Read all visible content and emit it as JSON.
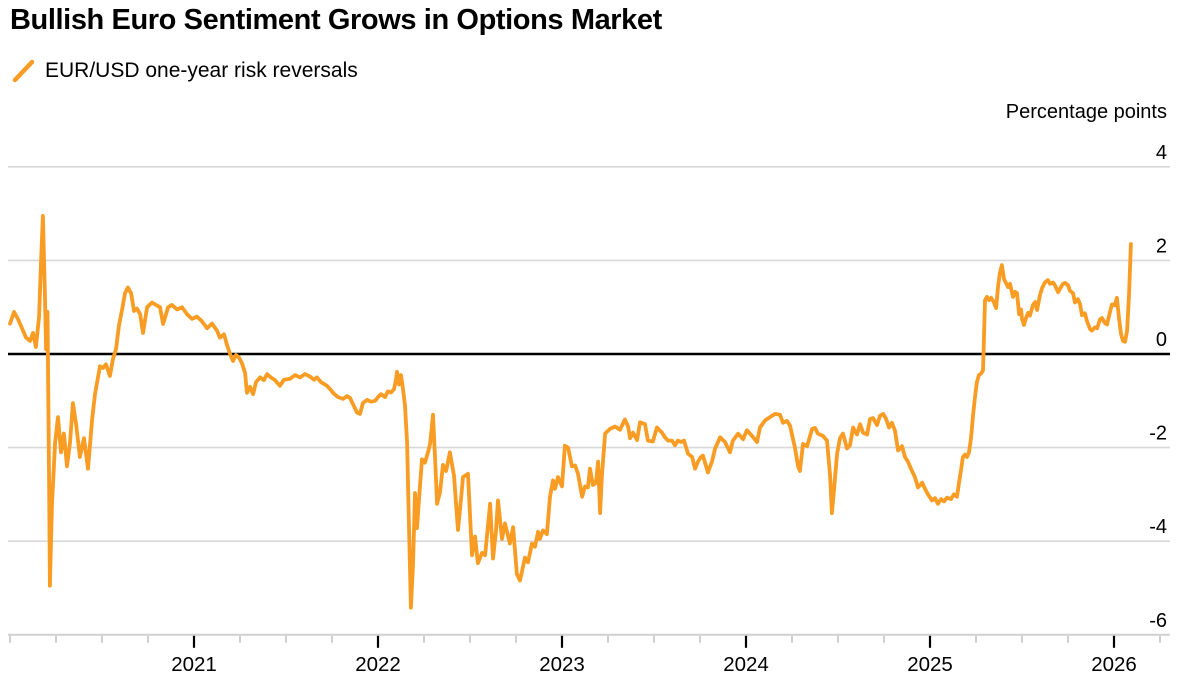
{
  "header": {
    "title": "Bullish Euro Sentiment Grows in Options Market",
    "legend_label": "EUR/USD one-year risk reversals"
  },
  "axis": {
    "unit_label": "Percentage points"
  },
  "colors": {
    "line": "#F89C24",
    "grid": "#D8D8D8",
    "zero_line": "#000000",
    "axis_line": "#D2D2D2",
    "minor_tick": "#C4C4C4",
    "major_tick": "#000000",
    "label": "#000000"
  },
  "chart_data": {
    "type": "line",
    "title": "Bullish Euro Sentiment Grows in Options Market",
    "series_name": "EUR/USD one-year risk reversals",
    "ylabel": "Percentage points",
    "xlabel": "",
    "grid": "horizontal",
    "legend_position": "top-left",
    "x_range": [
      2019.99,
      2026.3
    ],
    "ylim": [
      -6.6,
      4
    ],
    "y_ticks": [
      4,
      2,
      0,
      -2,
      -4,
      -6
    ],
    "x_ticks": [
      2021,
      2022,
      2023,
      2024,
      2025,
      2026
    ],
    "x_minor_tick_interval": 0.25,
    "zero_line": true,
    "points": [
      [
        2020.0,
        0.65
      ],
      [
        2020.022,
        0.9
      ],
      [
        2020.043,
        0.75
      ],
      [
        2020.065,
        0.55
      ],
      [
        2020.087,
        0.35
      ],
      [
        2020.109,
        0.28
      ],
      [
        2020.125,
        0.45
      ],
      [
        2020.141,
        0.15
      ],
      [
        2020.158,
        0.8
      ],
      [
        2020.168,
        1.9
      ],
      [
        2020.179,
        2.95
      ],
      [
        2020.19,
        1.2
      ],
      [
        2020.196,
        0.1
      ],
      [
        2020.204,
        0.9
      ],
      [
        2020.212,
        -2.5
      ],
      [
        2020.217,
        -4.95
      ],
      [
        2020.228,
        -3.2
      ],
      [
        2020.245,
        -1.9
      ],
      [
        2020.261,
        -1.35
      ],
      [
        2020.277,
        -2.1
      ],
      [
        2020.293,
        -1.7
      ],
      [
        2020.31,
        -2.4
      ],
      [
        2020.326,
        -1.9
      ],
      [
        2020.342,
        -1.05
      ],
      [
        2020.359,
        -1.5
      ],
      [
        2020.38,
        -2.2
      ],
      [
        2020.402,
        -1.8
      ],
      [
        2020.424,
        -2.45
      ],
      [
        2020.446,
        -1.4
      ],
      [
        2020.462,
        -0.86
      ],
      [
        2020.478,
        -0.5
      ],
      [
        2020.489,
        -0.26
      ],
      [
        2020.505,
        -0.3
      ],
      [
        2020.522,
        -0.22
      ],
      [
        2020.543,
        -0.47
      ],
      [
        2020.56,
        -0.1
      ],
      [
        2020.576,
        0.1
      ],
      [
        2020.592,
        0.6
      ],
      [
        2020.609,
        0.95
      ],
      [
        2020.625,
        1.3
      ],
      [
        2020.641,
        1.42
      ],
      [
        2020.658,
        1.3
      ],
      [
        2020.674,
        0.92
      ],
      [
        2020.69,
        0.97
      ],
      [
        2020.707,
        0.85
      ],
      [
        2020.723,
        0.45
      ],
      [
        2020.745,
        1.0
      ],
      [
        2020.772,
        1.1
      ],
      [
        2020.793,
        1.05
      ],
      [
        2020.815,
        1.0
      ],
      [
        2020.832,
        0.64
      ],
      [
        2020.859,
        1.0
      ],
      [
        2020.88,
        1.05
      ],
      [
        2020.908,
        0.95
      ],
      [
        2020.935,
        1.0
      ],
      [
        2020.962,
        0.85
      ],
      [
        2020.989,
        0.75
      ],
      [
        2021.016,
        0.8
      ],
      [
        2021.043,
        0.7
      ],
      [
        2021.071,
        0.55
      ],
      [
        2021.098,
        0.65
      ],
      [
        2021.125,
        0.5
      ],
      [
        2021.141,
        0.35
      ],
      [
        2021.163,
        0.42
      ],
      [
        2021.179,
        0.2
      ],
      [
        2021.196,
        0.0
      ],
      [
        2021.212,
        -0.15
      ],
      [
        2021.228,
        -0.02
      ],
      [
        2021.245,
        -0.08
      ],
      [
        2021.261,
        -0.2
      ],
      [
        2021.277,
        -0.4
      ],
      [
        2021.288,
        -0.83
      ],
      [
        2021.304,
        -0.7
      ],
      [
        2021.321,
        -0.86
      ],
      [
        2021.337,
        -0.6
      ],
      [
        2021.359,
        -0.5
      ],
      [
        2021.38,
        -0.56
      ],
      [
        2021.397,
        -0.43
      ],
      [
        2021.418,
        -0.5
      ],
      [
        2021.44,
        -0.56
      ],
      [
        2021.467,
        -0.68
      ],
      [
        2021.489,
        -0.55
      ],
      [
        2021.522,
        -0.53
      ],
      [
        2021.549,
        -0.45
      ],
      [
        2021.576,
        -0.5
      ],
      [
        2021.603,
        -0.43
      ],
      [
        2021.63,
        -0.48
      ],
      [
        2021.652,
        -0.55
      ],
      [
        2021.668,
        -0.5
      ],
      [
        2021.69,
        -0.6
      ],
      [
        2021.723,
        -0.68
      ],
      [
        2021.739,
        -0.75
      ],
      [
        2021.761,
        -0.85
      ],
      [
        2021.783,
        -0.92
      ],
      [
        2021.81,
        -0.96
      ],
      [
        2021.832,
        -0.9
      ],
      [
        2021.848,
        -0.94
      ],
      [
        2021.87,
        -1.12
      ],
      [
        2021.886,
        -1.25
      ],
      [
        2021.902,
        -1.28
      ],
      [
        2021.918,
        -1.05
      ],
      [
        2021.94,
        -0.98
      ],
      [
        2021.962,
        -1.02
      ],
      [
        2021.984,
        -1.0
      ],
      [
        2022.0,
        -0.92
      ],
      [
        2022.016,
        -0.86
      ],
      [
        2022.038,
        -0.92
      ],
      [
        2022.054,
        -0.8
      ],
      [
        2022.071,
        -0.82
      ],
      [
        2022.087,
        -0.75
      ],
      [
        2022.098,
        -0.55
      ],
      [
        2022.103,
        -0.38
      ],
      [
        2022.114,
        -0.65
      ],
      [
        2022.125,
        -0.45
      ],
      [
        2022.136,
        -0.75
      ],
      [
        2022.147,
        -1.1
      ],
      [
        2022.158,
        -1.9
      ],
      [
        2022.168,
        -3.6
      ],
      [
        2022.179,
        -5.42
      ],
      [
        2022.19,
        -4.5
      ],
      [
        2022.201,
        -2.97
      ],
      [
        2022.212,
        -3.72
      ],
      [
        2022.223,
        -3.1
      ],
      [
        2022.239,
        -2.25
      ],
      [
        2022.255,
        -2.32
      ],
      [
        2022.272,
        -2.1
      ],
      [
        2022.283,
        -1.92
      ],
      [
        2022.299,
        -1.3
      ],
      [
        2022.31,
        -2.2
      ],
      [
        2022.321,
        -3.2
      ],
      [
        2022.337,
        -2.95
      ],
      [
        2022.353,
        -2.37
      ],
      [
        2022.37,
        -2.5
      ],
      [
        2022.391,
        -2.1
      ],
      [
        2022.413,
        -2.6
      ],
      [
        2022.435,
        -3.76
      ],
      [
        2022.451,
        -3.1
      ],
      [
        2022.462,
        -2.63
      ],
      [
        2022.489,
        -2.56
      ],
      [
        2022.511,
        -4.3
      ],
      [
        2022.527,
        -3.9
      ],
      [
        2022.543,
        -4.47
      ],
      [
        2022.565,
        -4.25
      ],
      [
        2022.582,
        -4.3
      ],
      [
        2022.609,
        -3.2
      ],
      [
        2022.625,
        -4.37
      ],
      [
        2022.641,
        -3.8
      ],
      [
        2022.652,
        -3.13
      ],
      [
        2022.674,
        -3.95
      ],
      [
        2022.69,
        -3.62
      ],
      [
        2022.717,
        -4.05
      ],
      [
        2022.734,
        -3.7
      ],
      [
        2022.755,
        -4.7
      ],
      [
        2022.772,
        -4.84
      ],
      [
        2022.799,
        -4.35
      ],
      [
        2022.815,
        -4.45
      ],
      [
        2022.837,
        -4.05
      ],
      [
        2022.853,
        -4.12
      ],
      [
        2022.87,
        -3.8
      ],
      [
        2022.88,
        -3.95
      ],
      [
        2022.897,
        -3.77
      ],
      [
        2022.918,
        -3.85
      ],
      [
        2022.935,
        -3.05
      ],
      [
        2022.951,
        -2.7
      ],
      [
        2022.962,
        -2.88
      ],
      [
        2022.978,
        -2.63
      ],
      [
        2023.0,
        -2.83
      ],
      [
        2023.016,
        -1.96
      ],
      [
        2023.033,
        -2.0
      ],
      [
        2023.054,
        -2.4
      ],
      [
        2023.071,
        -2.38
      ],
      [
        2023.087,
        -2.56
      ],
      [
        2023.109,
        -3.05
      ],
      [
        2023.125,
        -2.83
      ],
      [
        2023.141,
        -2.85
      ],
      [
        2023.152,
        -2.45
      ],
      [
        2023.168,
        -2.8
      ],
      [
        2023.185,
        -2.75
      ],
      [
        2023.196,
        -2.3
      ],
      [
        2023.207,
        -3.4
      ],
      [
        2023.217,
        -2.6
      ],
      [
        2023.234,
        -1.7
      ],
      [
        2023.261,
        -1.6
      ],
      [
        2023.288,
        -1.55
      ],
      [
        2023.315,
        -1.62
      ],
      [
        2023.342,
        -1.4
      ],
      [
        2023.359,
        -1.55
      ],
      [
        2023.37,
        -1.8
      ],
      [
        2023.386,
        -1.68
      ],
      [
        2023.408,
        -1.84
      ],
      [
        2023.424,
        -1.46
      ],
      [
        2023.451,
        -1.5
      ],
      [
        2023.467,
        -1.85
      ],
      [
        2023.494,
        -1.87
      ],
      [
        2023.516,
        -1.57
      ],
      [
        2023.543,
        -1.68
      ],
      [
        2023.56,
        -1.78
      ],
      [
        2023.576,
        -1.85
      ],
      [
        2023.598,
        -1.85
      ],
      [
        2023.614,
        -1.95
      ],
      [
        2023.63,
        -1.85
      ],
      [
        2023.647,
        -1.88
      ],
      [
        2023.663,
        -1.85
      ],
      [
        2023.685,
        -2.13
      ],
      [
        2023.707,
        -2.2
      ],
      [
        2023.723,
        -2.45
      ],
      [
        2023.739,
        -2.3
      ],
      [
        2023.755,
        -2.2
      ],
      [
        2023.766,
        -2.17
      ],
      [
        2023.793,
        -2.53
      ],
      [
        2023.815,
        -2.3
      ],
      [
        2023.832,
        -2.02
      ],
      [
        2023.859,
        -1.78
      ],
      [
        2023.886,
        -1.88
      ],
      [
        2023.913,
        -2.1
      ],
      [
        2023.929,
        -1.85
      ],
      [
        2023.957,
        -1.7
      ],
      [
        2023.984,
        -1.82
      ],
      [
        2024.005,
        -1.63
      ],
      [
        2024.033,
        -1.75
      ],
      [
        2024.06,
        -1.88
      ],
      [
        2024.076,
        -1.57
      ],
      [
        2024.103,
        -1.42
      ],
      [
        2024.13,
        -1.35
      ],
      [
        2024.158,
        -1.28
      ],
      [
        2024.185,
        -1.3
      ],
      [
        2024.201,
        -1.47
      ],
      [
        2024.223,
        -1.43
      ],
      [
        2024.239,
        -1.53
      ],
      [
        2024.266,
        -2.0
      ],
      [
        2024.283,
        -2.4
      ],
      [
        2024.293,
        -2.5
      ],
      [
        2024.31,
        -1.92
      ],
      [
        2024.332,
        -1.97
      ],
      [
        2024.359,
        -1.6
      ],
      [
        2024.375,
        -1.58
      ],
      [
        2024.391,
        -1.7
      ],
      [
        2024.418,
        -1.75
      ],
      [
        2024.44,
        -1.85
      ],
      [
        2024.457,
        -2.6
      ],
      [
        2024.467,
        -3.4
      ],
      [
        2024.478,
        -2.9
      ],
      [
        2024.495,
        -2.13
      ],
      [
        2024.511,
        -1.8
      ],
      [
        2024.527,
        -1.7
      ],
      [
        2024.549,
        -2.02
      ],
      [
        2024.565,
        -1.95
      ],
      [
        2024.582,
        -1.57
      ],
      [
        2024.603,
        -1.72
      ],
      [
        2024.62,
        -1.5
      ],
      [
        2024.636,
        -1.68
      ],
      [
        2024.658,
        -1.72
      ],
      [
        2024.674,
        -1.39
      ],
      [
        2024.69,
        -1.37
      ],
      [
        2024.712,
        -1.52
      ],
      [
        2024.728,
        -1.32
      ],
      [
        2024.745,
        -1.28
      ],
      [
        2024.761,
        -1.38
      ],
      [
        2024.777,
        -1.57
      ],
      [
        2024.793,
        -1.47
      ],
      [
        2024.81,
        -1.64
      ],
      [
        2024.826,
        -2.06
      ],
      [
        2024.848,
        -1.97
      ],
      [
        2024.864,
        -2.2
      ],
      [
        2024.88,
        -2.3
      ],
      [
        2024.902,
        -2.5
      ],
      [
        2024.918,
        -2.63
      ],
      [
        2024.935,
        -2.85
      ],
      [
        2024.957,
        -2.75
      ],
      [
        2024.973,
        -2.88
      ],
      [
        2024.989,
        -3.0
      ],
      [
        2025.011,
        -3.13
      ],
      [
        2025.027,
        -3.08
      ],
      [
        2025.043,
        -3.2
      ],
      [
        2025.06,
        -3.1
      ],
      [
        2025.076,
        -3.15
      ],
      [
        2025.092,
        -3.07
      ],
      [
        2025.114,
        -3.1
      ],
      [
        2025.13,
        -3.0
      ],
      [
        2025.147,
        -3.05
      ],
      [
        2025.158,
        -2.74
      ],
      [
        2025.168,
        -2.5
      ],
      [
        2025.179,
        -2.2
      ],
      [
        2025.19,
        -2.15
      ],
      [
        2025.201,
        -2.2
      ],
      [
        2025.212,
        -2.1
      ],
      [
        2025.223,
        -1.8
      ],
      [
        2025.234,
        -1.3
      ],
      [
        2025.245,
        -0.9
      ],
      [
        2025.255,
        -0.6
      ],
      [
        2025.266,
        -0.45
      ],
      [
        2025.277,
        -0.42
      ],
      [
        2025.288,
        -0.35
      ],
      [
        2025.293,
        0.3
      ],
      [
        2025.299,
        1.15
      ],
      [
        2025.31,
        1.22
      ],
      [
        2025.321,
        1.15
      ],
      [
        2025.332,
        1.2
      ],
      [
        2025.348,
        1.1
      ],
      [
        2025.359,
        0.98
      ],
      [
        2025.37,
        1.45
      ],
      [
        2025.38,
        1.73
      ],
      [
        2025.391,
        1.9
      ],
      [
        2025.402,
        1.6
      ],
      [
        2025.413,
        1.52
      ],
      [
        2025.424,
        1.43
      ],
      [
        2025.435,
        1.5
      ],
      [
        2025.451,
        1.22
      ],
      [
        2025.462,
        1.33
      ],
      [
        2025.473,
        1.3
      ],
      [
        2025.484,
        0.85
      ],
      [
        2025.495,
        0.95
      ],
      [
        2025.5,
        0.75
      ],
      [
        2025.511,
        0.62
      ],
      [
        2025.522,
        0.77
      ],
      [
        2025.533,
        0.88
      ],
      [
        2025.543,
        0.82
      ],
      [
        2025.56,
        1.05
      ],
      [
        2025.571,
        1.11
      ],
      [
        2025.582,
        0.94
      ],
      [
        2025.598,
        1.26
      ],
      [
        2025.609,
        1.41
      ],
      [
        2025.625,
        1.53
      ],
      [
        2025.641,
        1.58
      ],
      [
        2025.652,
        1.5
      ],
      [
        2025.668,
        1.53
      ],
      [
        2025.679,
        1.47
      ],
      [
        2025.696,
        1.32
      ],
      [
        2025.707,
        1.4
      ],
      [
        2025.723,
        1.5
      ],
      [
        2025.734,
        1.52
      ],
      [
        2025.75,
        1.47
      ],
      [
        2025.761,
        1.35
      ],
      [
        2025.777,
        1.3
      ],
      [
        2025.788,
        1.1
      ],
      [
        2025.804,
        1.17
      ],
      [
        2025.815,
        1.07
      ],
      [
        2025.826,
        0.83
      ],
      [
        2025.842,
        0.87
      ],
      [
        2025.853,
        0.7
      ],
      [
        2025.87,
        0.53
      ],
      [
        2025.88,
        0.5
      ],
      [
        2025.897,
        0.57
      ],
      [
        2025.908,
        0.55
      ],
      [
        2025.924,
        0.74
      ],
      [
        2025.935,
        0.77
      ],
      [
        2025.951,
        0.66
      ],
      [
        2025.962,
        0.63
      ],
      [
        2025.978,
        0.9
      ],
      [
        2025.989,
        1.06
      ],
      [
        2026.005,
        1.04
      ],
      [
        2026.016,
        1.2
      ],
      [
        2026.027,
        0.77
      ],
      [
        2026.038,
        0.43
      ],
      [
        2026.049,
        0.28
      ],
      [
        2026.06,
        0.26
      ],
      [
        2026.071,
        0.5
      ],
      [
        2026.082,
        1.3
      ],
      [
        2026.092,
        2.35
      ]
    ]
  }
}
